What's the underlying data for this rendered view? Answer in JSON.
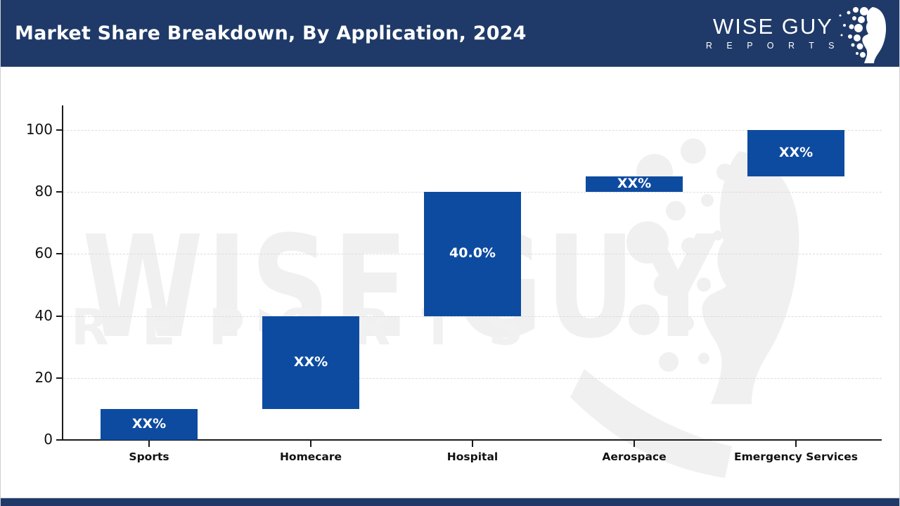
{
  "header": {
    "title": "Market Share Breakdown, By Application, 2024",
    "logo": {
      "line1": "WISE GUY",
      "line2": "R E P O R T S",
      "icon": "dotted-head-profile"
    }
  },
  "watermark": {
    "line1": "WISE GUY",
    "line2": "REPORTS",
    "icon": "dotted-head-profile"
  },
  "colors": {
    "header_navy": "#1f3a68",
    "footer_navy": "#1f3a68",
    "bar_blue": "#0d4ba0",
    "bar_label_text": "#ffffff",
    "gridline": "#dcdcdc",
    "axis": "#1a1a1a",
    "watermark_gray": "#f0f0f0",
    "background": "#ffffff"
  },
  "chart_data": {
    "type": "bar",
    "subtype": "waterfall",
    "title": "Market Share Breakdown, By Application, 2024",
    "xlabel": "",
    "ylabel": "",
    "ylim": [
      0,
      100
    ],
    "yticks": [
      0,
      20,
      40,
      60,
      80,
      100
    ],
    "grid": "horizontal-dashed",
    "legend": "none",
    "categories": [
      "Sports",
      "Homecare",
      "Hospital",
      "Aerospace",
      "Emergency Services"
    ],
    "segments": [
      {
        "category": "Sports",
        "start": 0,
        "end": 10,
        "value": 10,
        "label": "XX%"
      },
      {
        "category": "Homecare",
        "start": 10,
        "end": 40,
        "value": 30,
        "label": "XX%"
      },
      {
        "category": "Hospital",
        "start": 40,
        "end": 80,
        "value": 40,
        "label": "40.0%"
      },
      {
        "category": "Aerospace",
        "start": 80,
        "end": 85,
        "value": 5,
        "label": "XX%"
      },
      {
        "category": "Emergency Services",
        "start": 85,
        "end": 100,
        "value": 15,
        "label": "XX%"
      }
    ]
  }
}
